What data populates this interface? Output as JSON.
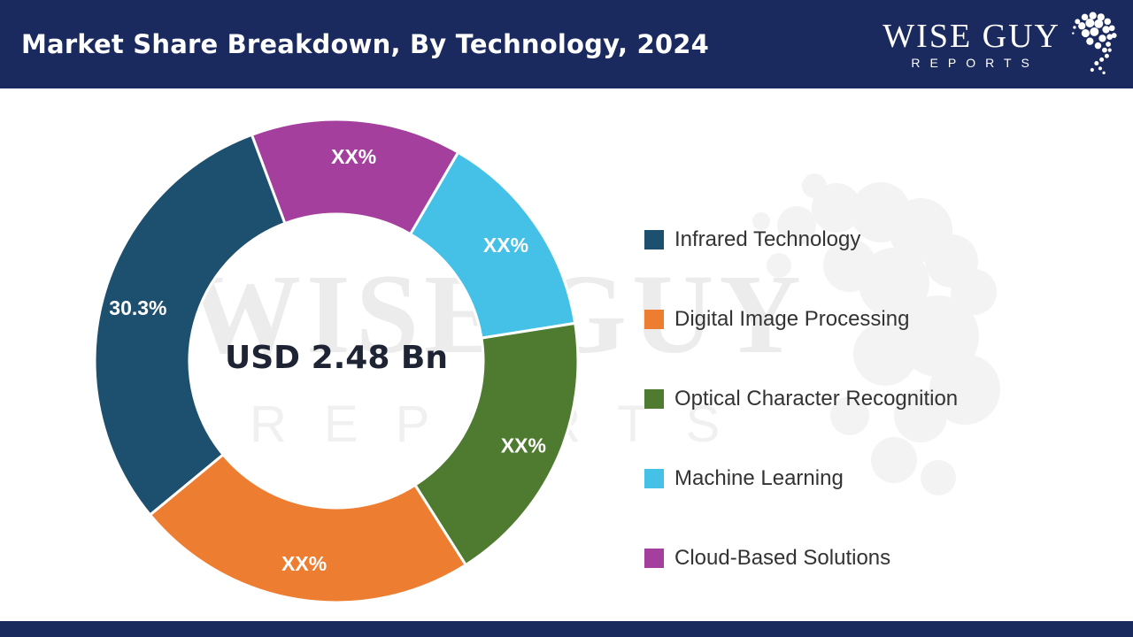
{
  "header": {
    "title": "Market Share Breakdown, By Technology, 2024",
    "bg_color": "#1b2a5e",
    "logo": {
      "line1": "WISE GUY",
      "line2": "REPORTS"
    }
  },
  "watermark": {
    "line1": "WISE GUY",
    "line2": "REPORTS"
  },
  "chart_data": {
    "type": "pie",
    "donut": true,
    "title": "Market Share Breakdown, By Technology, 2024",
    "center_text": "USD 2.48 Bn",
    "legend_position": "right",
    "start_angle_deg": 339.5,
    "series": [
      {
        "name": "Cloud-Based Solutions",
        "label": "XX%",
        "arc_pct": 14.1,
        "color": "#a43f9d"
      },
      {
        "name": "Machine Learning",
        "label": "XX%",
        "arc_pct": 14.1,
        "color": "#45c1e8"
      },
      {
        "name": "Optical Character Recognition",
        "label": "XX%",
        "arc_pct": 18.5,
        "color": "#4e7b2f"
      },
      {
        "name": "Digital Image Processing",
        "label": "XX%",
        "arc_pct": 23.0,
        "color": "#ed7d31"
      },
      {
        "name": "Infrared Technology",
        "label": "30.3%",
        "arc_pct": 30.3,
        "color": "#1d4f6e"
      }
    ]
  },
  "legend": {
    "items": [
      {
        "label": "Infrared Technology",
        "color": "#1d4f6e"
      },
      {
        "label": "Digital Image Processing",
        "color": "#ed7d31"
      },
      {
        "label": "Optical Character Recognition",
        "color": "#4e7b2f"
      },
      {
        "label": "Machine Learning",
        "color": "#45c1e8"
      },
      {
        "label": "Cloud-Based Solutions",
        "color": "#a43f9d"
      }
    ]
  }
}
